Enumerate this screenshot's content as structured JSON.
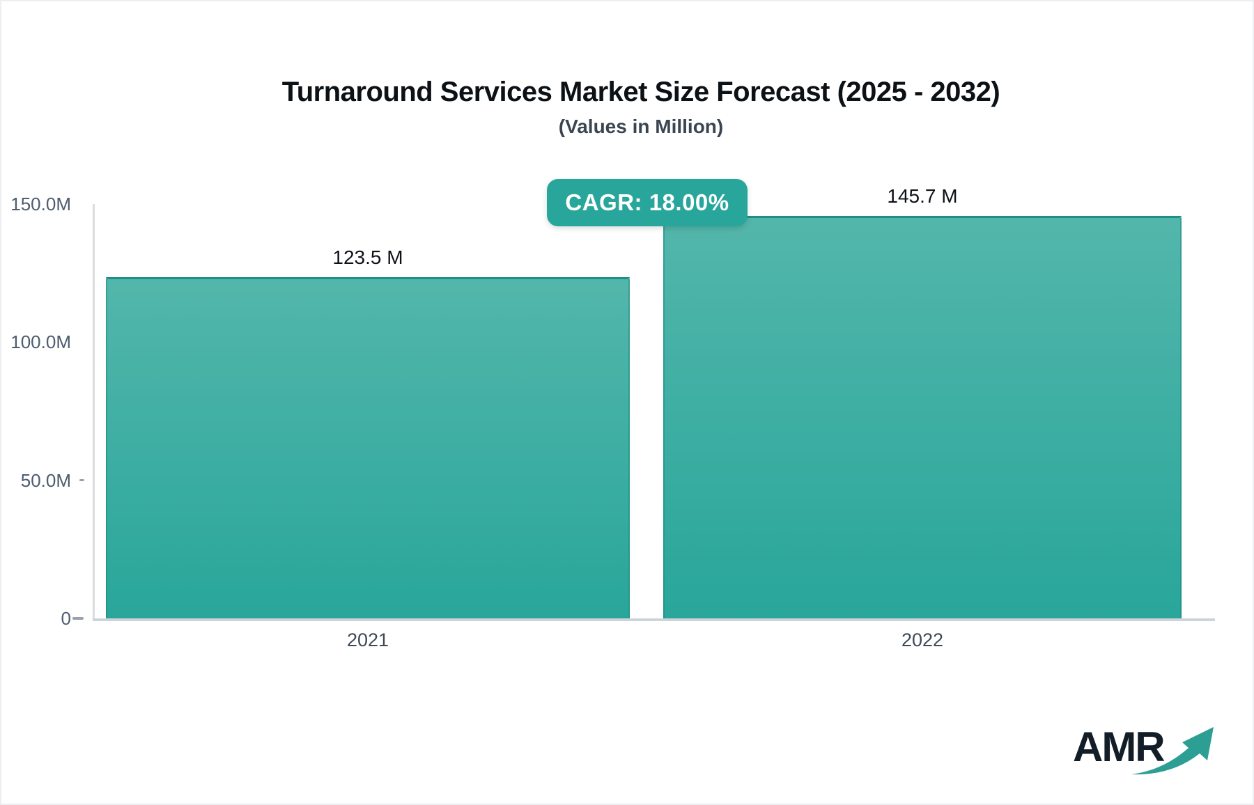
{
  "header": {
    "title": "Turnaround Services Market Size Forecast (2025 - 2032)",
    "subtitle": "(Values in Million)"
  },
  "badge": {
    "label": "CAGR: 18.00%"
  },
  "logo": {
    "text": "AMR",
    "arrow_icon": "trending-up-arrow"
  },
  "colors": {
    "bar_top": "#53b6ab",
    "bar_bottom": "#29a69a",
    "bar_border": "#1e9088",
    "badge_bg": "#29a69b",
    "accent": "#2c9e94",
    "axis_line": "#d9dce0",
    "tick_text": "#4d5c6f",
    "title_text": "#0c1116"
  },
  "chart_data": {
    "type": "bar",
    "title": "Turnaround Services Market Size Forecast (2025 - 2032)",
    "subtitle": "(Values in Million)",
    "categories": [
      "2021",
      "2022"
    ],
    "values": [
      123.5,
      145.7
    ],
    "value_labels": [
      "123.5 M",
      "145.7 M"
    ],
    "annotation": "CAGR: 18.00%",
    "xlabel": "",
    "ylabel": "",
    "ylim": [
      0,
      150
    ],
    "yticks": [
      "150.0M",
      "100.0M",
      "50.0M",
      "0"
    ],
    "grid": false,
    "legend": false
  }
}
